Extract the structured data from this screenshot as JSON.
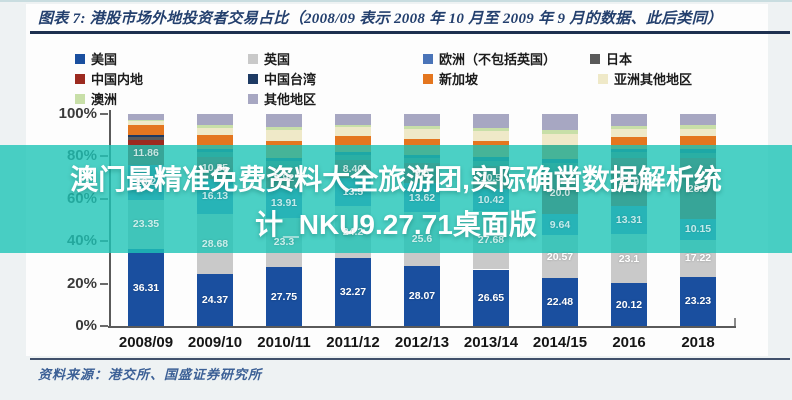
{
  "title": "图表 7: 港股市场外地投资者交易占比（2008/09 表示 2008 年 10 月至 2009 年 9 月的数据、此后类同）",
  "source": "资料来源：港交所、国盛证券研究所",
  "overlay_banner": {
    "line1": "澳门最精准免费资料大全旅游团,实际确凿数据解析统",
    "line2": "计_NKU9.27.71桌面版",
    "background_color": "#1ec4b6",
    "text_color": "#ffffff"
  },
  "legend": {
    "items": [
      {
        "label": "美国",
        "color": "#1a4f9f"
      },
      {
        "label": "英国",
        "color": "#c9c9c9"
      },
      {
        "label": "欧洲（不包括英国）",
        "color": "#4a74b8"
      },
      {
        "label": "日本",
        "color": "#5a5a5a"
      },
      {
        "label": "中国内地",
        "color": "#9c2a20"
      },
      {
        "label": "中国台湾",
        "color": "#1d3a63"
      },
      {
        "label": "新加坡",
        "color": "#e4761f"
      },
      {
        "label": "亚洲其他地区",
        "color": "#efe9c8"
      },
      {
        "label": "澳洲",
        "color": "#c8dfa8"
      },
      {
        "label": "其他地区",
        "color": "#a7a7c2"
      }
    ]
  },
  "y_axis": {
    "ticks": [
      "100%",
      "80%",
      "60%",
      "40%",
      "20%",
      "0%"
    ]
  },
  "chart_data": {
    "type": "bar",
    "subtype": "stacked-percent",
    "title": "港股市场外地投资者交易占比",
    "xlabel": "",
    "ylabel": "",
    "ylim": [
      0,
      100
    ],
    "grid": false,
    "legend_position": "top",
    "categories": [
      "2008/09",
      "2009/10",
      "2010/11",
      "2011/12",
      "2012/13",
      "2013/14",
      "2014/15",
      "2016",
      "2018"
    ],
    "series": [
      {
        "name": "美国",
        "color": "#1a4f9f",
        "show_labels": true,
        "values": [
          36.31,
          24.37,
          27.75,
          32.27,
          28.07,
          26.65,
          22.48,
          20.12,
          23.23
        ],
        "labels": [
          "36.31",
          "24.37",
          "27.75",
          "32.27",
          "28.07",
          "26.65",
          "22.48",
          "20.12",
          "23.23"
        ]
      },
      {
        "name": "英国",
        "color": "#c9c9c9",
        "show_labels": true,
        "values": [
          23.35,
          28.68,
          23.3,
          24.2,
          25.6,
          27.68,
          20.57,
          23.1,
          17.22
        ],
        "labels": [
          "23.35",
          "28.68",
          "23.3",
          "24.2",
          "25.6",
          "27.68",
          "20.57",
          "23.1",
          "17.22"
        ]
      },
      {
        "name": "欧洲（不包括英国）",
        "color": "#4a74b8",
        "show_labels": true,
        "values": [
          16.2,
          16.13,
          13.91,
          13.5,
          13.62,
          10.42,
          9.64,
          13.31,
          10.15
        ],
        "labels": [
          "16.2",
          "16.13",
          "13.91",
          "13.5",
          "13.62",
          "10.42",
          "9.64",
          "13.31",
          "10.15"
        ]
      },
      {
        "name": "中国内地",
        "color": "#9c2a20",
        "show_labels": true,
        "values": [
          11.86,
          10.55,
          9.92,
          8.4,
          9.5,
          10.5,
          20.0,
          22.87,
          28.5
        ],
        "labels": [
          "11.86",
          "10.55",
          "9.92",
          "8.40",
          "9.5",
          "10.5",
          "20.0",
          "22.9",
          "28.5"
        ]
      },
      {
        "name": "日本",
        "color": "#5a5a5a",
        "show_labels": false,
        "values": [
          1.5,
          2.5,
          2.8,
          2.5,
          2.6,
          2.8,
          4.0,
          2.5,
          2.6
        ]
      },
      {
        "name": "中国台湾",
        "color": "#1d3a63",
        "show_labels": false,
        "values": [
          0.98,
          1.2,
          1.5,
          1.3,
          1.4,
          1.5,
          2.31,
          1.5,
          1.8
        ]
      },
      {
        "name": "新加坡",
        "color": "#e4761f",
        "show_labels": false,
        "values": [
          4.7,
          6.8,
          8.3,
          7.3,
          7.6,
          7.9,
          6.5,
          5.8,
          6.2
        ]
      },
      {
        "name": "亚洲其他地区",
        "color": "#efe9c8",
        "show_labels": false,
        "values": [
          1.8,
          3.2,
          5.0,
          4.2,
          4.4,
          4.6,
          5.0,
          3.5,
          3.3
        ]
      },
      {
        "name": "澳洲",
        "color": "#c8dfa8",
        "show_labels": false,
        "values": [
          0.6,
          1.2,
          1.5,
          1.3,
          1.4,
          1.5,
          2.0,
          1.8,
          1.6
        ]
      },
      {
        "name": "其他地区",
        "color": "#a7a7c2",
        "show_labels": false,
        "values": [
          2.7,
          5.37,
          6.02,
          5.03,
          5.81,
          6.45,
          7.5,
          5.5,
          5.4
        ]
      }
    ]
  }
}
